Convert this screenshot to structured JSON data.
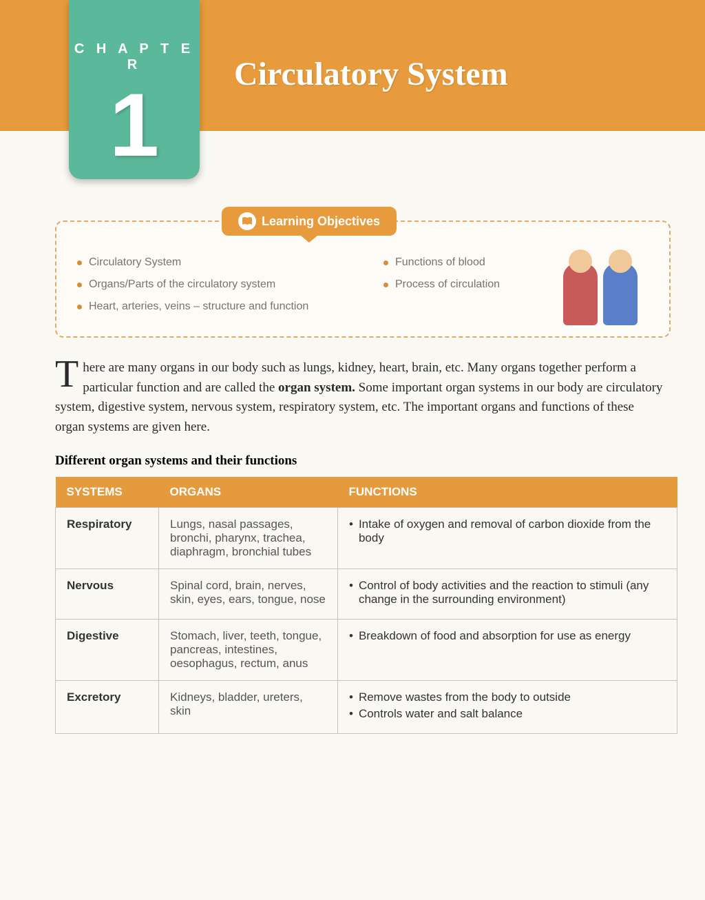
{
  "colors": {
    "orange": "#e89b3c",
    "orange_dark": "#d8862a",
    "green": "#5bb89a",
    "text_gray": "#7a736a",
    "border_dash": "#e0a86a",
    "bullet": "#d88c3a",
    "table_header": "#e69a3e",
    "cell_border": "#c9c3b6",
    "kid1_body": "#c85a5a",
    "kid1_head": "#f0c99b",
    "kid2_body": "#5a7fc8",
    "kid2_head": "#f0c99b"
  },
  "chapter": {
    "label": "C H A P T E R",
    "number": "1",
    "title": "Circulatory System"
  },
  "objectives": {
    "tab_label": "Learning Objectives",
    "left": [
      "Circulatory System",
      "Organs/Parts of the circulatory system",
      "Heart, arteries, veins – structure and function"
    ],
    "right": [
      "Functions of blood",
      "Process of circulation"
    ]
  },
  "intro": {
    "dropcap": "T",
    "text_before_bold": "here are many organs in our body such as lungs, kidney, heart, brain, etc. Many organs together perform a particular function and are called the ",
    "bold": "organ system.",
    "text_after_bold": " Some important organ systems in our body are circulatory system, digestive system, nervous system, respiratory system, etc. The important organs and functions of these organ systems are given here."
  },
  "table": {
    "title": "Different organ systems and their functions",
    "columns": [
      "SYSTEMS",
      "ORGANS",
      "FUNCTIONS"
    ],
    "rows": [
      {
        "system": "Respiratory",
        "organs": "Lungs, nasal passages, bronchi, pharynx, trachea, diaphragm, bronchial tubes",
        "functions": [
          "Intake of oxygen and removal of carbon dioxide from the body"
        ]
      },
      {
        "system": "Nervous",
        "organs": "Spinal cord, brain, nerves, skin, eyes, ears, tongue, nose",
        "functions": [
          "Control of body activities and the reaction to stimuli (any change in the surrounding environment)"
        ]
      },
      {
        "system": "Digestive",
        "organs": "Stomach, liver, teeth, tongue, pancreas, intestines, oesophagus, rectum, anus",
        "functions": [
          "Breakdown of food and absorption for use as energy"
        ]
      },
      {
        "system": "Excretory",
        "organs": "Kidneys, bladder, ureters, skin",
        "functions": [
          "Remove wastes from the body to outside",
          "Controls water and salt balance"
        ]
      }
    ]
  }
}
